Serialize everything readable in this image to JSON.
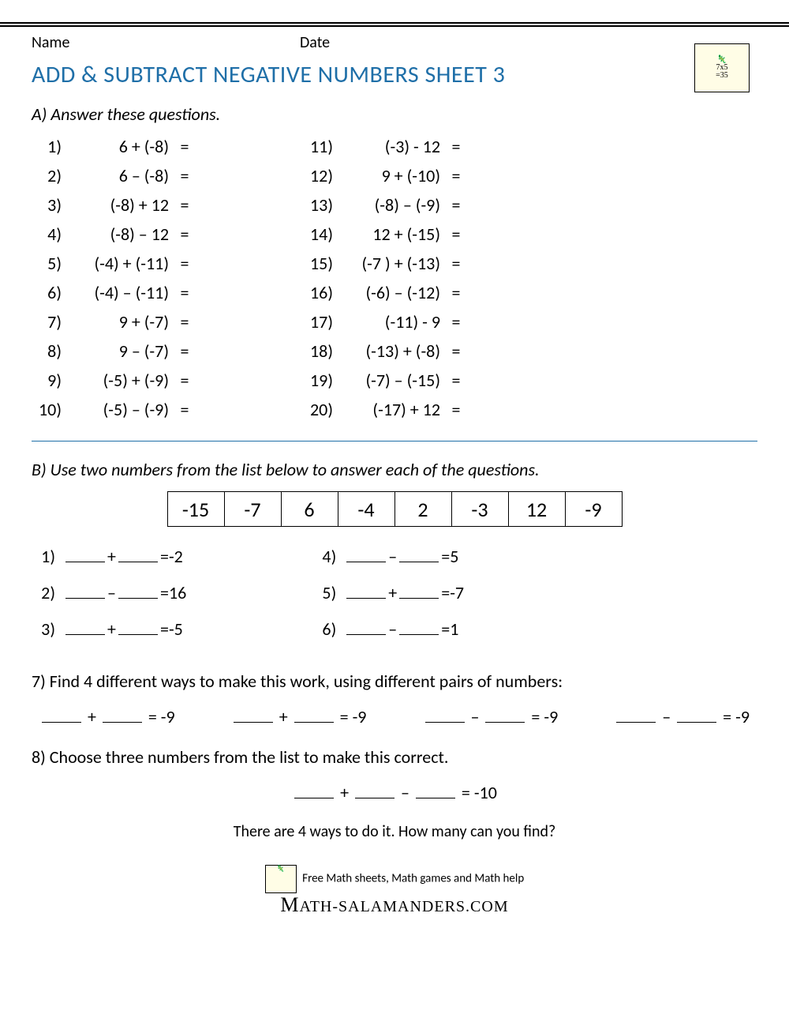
{
  "header": {
    "name_label": "Name",
    "date_label": "Date"
  },
  "title": "ADD & SUBTRACT NEGATIVE NUMBERS SHEET 3",
  "title_color": "#1f6fa8",
  "sectionA": {
    "label": "A) Answer these questions.",
    "left": [
      {
        "n": "1)",
        "expr": "6 + (-8)"
      },
      {
        "n": "2)",
        "expr": "6 – (-8)"
      },
      {
        "n": "3)",
        "expr": "(-8) + 12"
      },
      {
        "n": "4)",
        "expr": "(-8) – 12"
      },
      {
        "n": "5)",
        "expr": "(-4) + (-11)"
      },
      {
        "n": "6)",
        "expr": "(-4) – (-11)"
      },
      {
        "n": "7)",
        "expr": "9 + (-7)"
      },
      {
        "n": "8)",
        "expr": "9 – (-7)"
      },
      {
        "n": "9)",
        "expr": "(-5) + (-9)"
      },
      {
        "n": "10)",
        "expr": "(-5) – (-9)"
      }
    ],
    "right": [
      {
        "n": "11)",
        "expr": "(-3) - 12"
      },
      {
        "n": "12)",
        "expr": "9 + (-10)"
      },
      {
        "n": "13)",
        "expr": "(-8) – (-9)"
      },
      {
        "n": "14)",
        "expr": "12 + (-15)"
      },
      {
        "n": "15)",
        "expr": "(-7 ) + (-13)"
      },
      {
        "n": "16)",
        "expr": "(-6) – (-12)"
      },
      {
        "n": "17)",
        "expr": "(-11) - 9"
      },
      {
        "n": "18)",
        "expr": "(-13) + (-8)"
      },
      {
        "n": "19)",
        "expr": "(-7) – (-15)"
      },
      {
        "n": "20)",
        "expr": "(-17) + 12"
      }
    ],
    "eq": "="
  },
  "sectionB": {
    "label": "B) Use two numbers from the list below to answer each of the questions.",
    "numbers": [
      "-15",
      "-7",
      "6",
      "-4",
      "2",
      "-3",
      "12",
      "-9"
    ],
    "left": [
      {
        "n": "1)",
        "op": "+",
        "res": "-2"
      },
      {
        "n": "2)",
        "op": "–",
        "res": "16"
      },
      {
        "n": "3)",
        "op": "+",
        "res": "-5"
      }
    ],
    "right": [
      {
        "n": "4)",
        "op": "–",
        "res": "5"
      },
      {
        "n": "5)",
        "op": "+",
        "res": "-7"
      },
      {
        "n": "6)",
        "op": "–",
        "res": "1"
      }
    ],
    "q7_text": "7) Find 4 different ways to make this work, using different pairs of numbers:",
    "q7_items": [
      {
        "op": "+",
        "res": "-9"
      },
      {
        "op": "+",
        "res": "-9"
      },
      {
        "op": "–",
        "res": "-9"
      },
      {
        "op": "–",
        "res": "-9"
      }
    ],
    "q8_text": "8) Choose three numbers from the list to make this correct.",
    "q8_res": "-10",
    "hint": "There are 4 ways to do it. How many can you find?"
  },
  "footer": {
    "tagline": "Free Math sheets, Math games and Math help",
    "brand": "ATH-SALAMANDERS.COM"
  }
}
